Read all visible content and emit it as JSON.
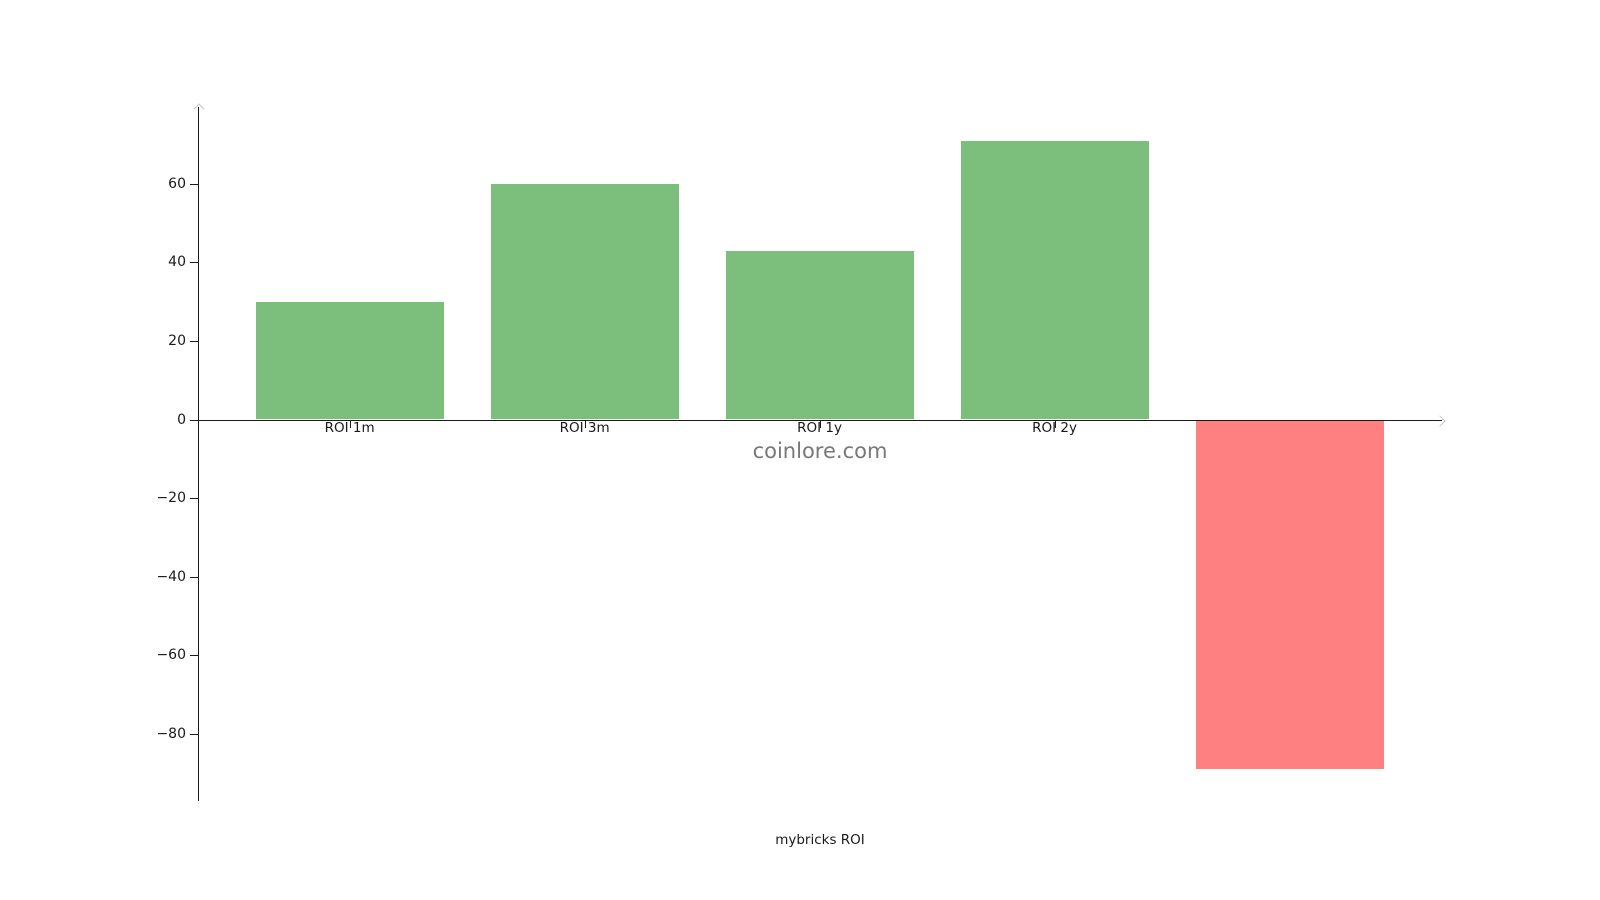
{
  "chart_data": {
    "type": "bar",
    "categories": [
      "ROI 1m",
      "ROI 3m",
      "ROI 1y",
      "ROI 2y",
      ""
    ],
    "values": [
      30,
      60,
      43,
      71,
      -89
    ],
    "title": "",
    "xlabel": "mybricks ROI",
    "ylabel": "",
    "ylim": [
      -97,
      79
    ],
    "yticks": [
      60,
      40,
      20,
      0,
      -20,
      -40,
      -60,
      -80
    ],
    "ytick_labels": [
      "60",
      "40",
      "20",
      "0",
      "−20",
      "−40",
      "−60",
      "−80"
    ],
    "grid": false,
    "legend_position": "none",
    "positive_color": "#7cbf7c",
    "negative_color": "#ff8080",
    "axis_color": "#1a1a1a",
    "text_color": "#1a1a1a",
    "watermark": "coinlore.com",
    "watermark_color": "#787878"
  }
}
